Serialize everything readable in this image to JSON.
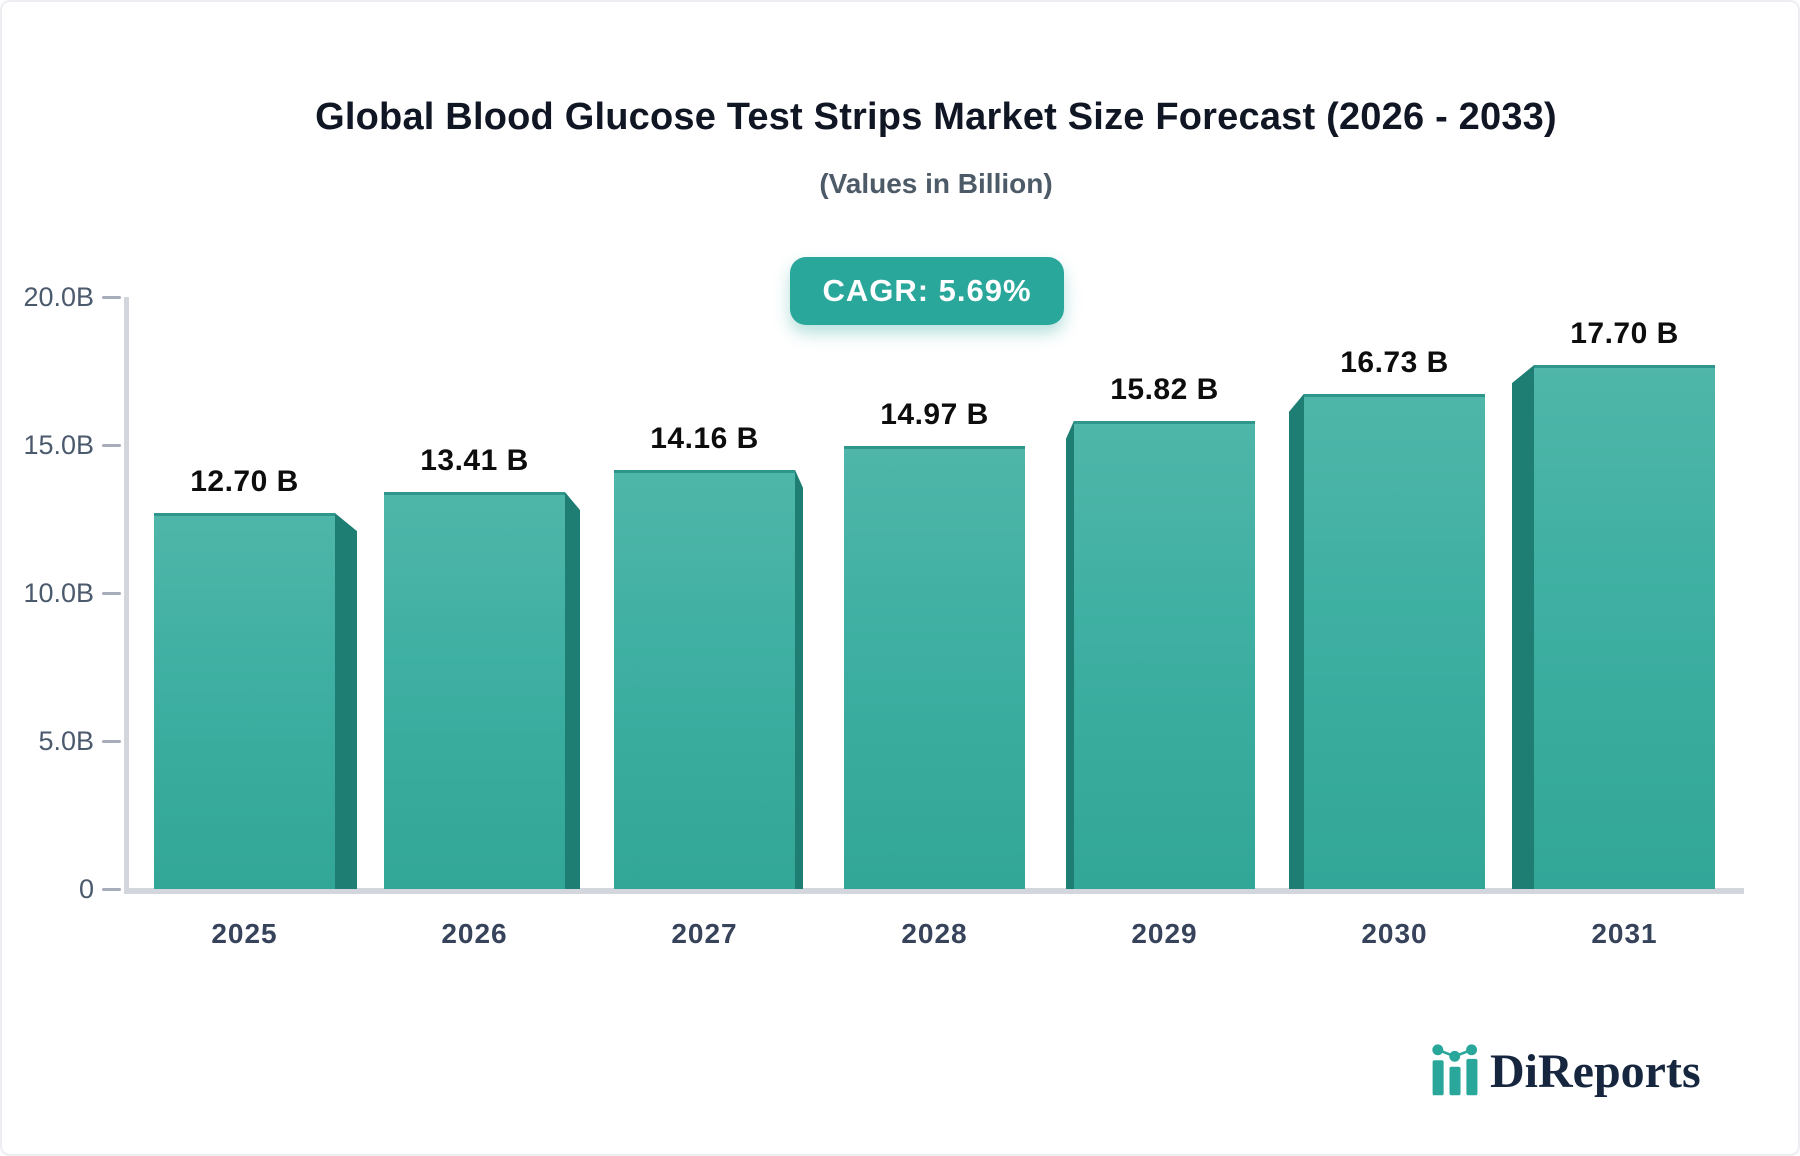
{
  "header": {
    "title": "Global Blood Glucose Test Strips Market Size Forecast (2026 - 2033)",
    "subtitle": "(Values in Billion)"
  },
  "badge": {
    "label": "CAGR: 5.69%"
  },
  "brand": {
    "name": "DiReports"
  },
  "chart_data": {
    "type": "bar",
    "title": "Global Blood Glucose Test Strips Market Size Forecast (2026 - 2033)",
    "subtitle": "(Values in Billion)",
    "cagr_label": "CAGR: 5.69%",
    "categories": [
      "2025",
      "2026",
      "2027",
      "2028",
      "2029",
      "2030",
      "2031"
    ],
    "values": [
      12.7,
      13.41,
      14.16,
      14.97,
      15.82,
      16.73,
      17.7
    ],
    "bar_labels": [
      "12.70 B",
      "13.41 B",
      "14.16 B",
      "14.97 B",
      "15.82 B",
      "16.73 B",
      "17.70 B"
    ],
    "xlabel": "",
    "ylabel": "",
    "ylim": [
      0,
      20
    ],
    "grid": false,
    "legend": false,
    "y_axis": {
      "ticks": [
        {
          "label": "20.0B",
          "value": 20
        },
        {
          "label": "15.0B",
          "value": 15
        },
        {
          "label": "10.0B",
          "value": 10
        },
        {
          "label": "5.0B",
          "value": 5
        },
        {
          "label": "0",
          "value": 0
        }
      ]
    },
    "colors": {
      "bar_fill_top": "#4fb6a9",
      "bar_fill_bottom": "#32a697",
      "bar_side": "#1f7e73",
      "badge_bg": "#2aa79b",
      "axis_line": "#d3d7dd",
      "brand_navy": "#17263f",
      "brand_teal": "#2aa79b"
    }
  }
}
